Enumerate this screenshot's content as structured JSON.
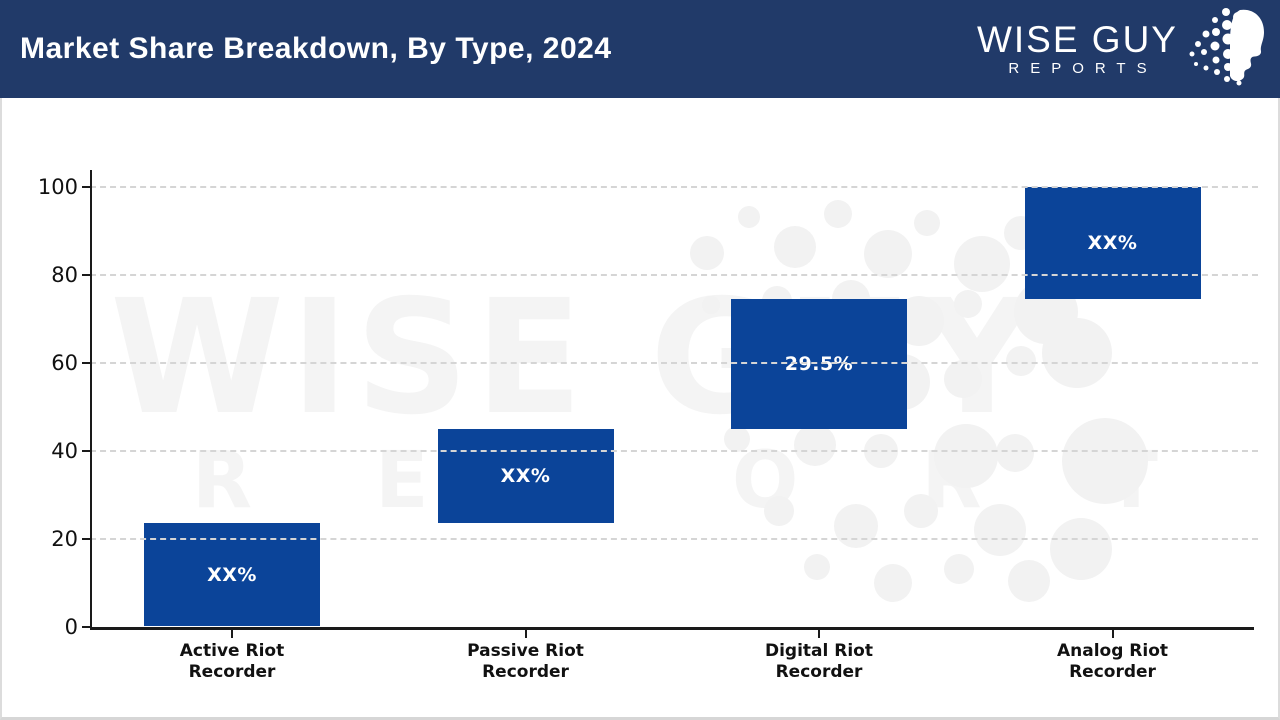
{
  "header": {
    "title": "Market Share Breakdown, By Type, 2024",
    "bg_color": "#213a69",
    "logo": {
      "line1": "WISE GUY",
      "line2": "REPORTS",
      "icon": "dotted-face-profile-icon"
    }
  },
  "watermark": {
    "line1": "WISE GUY",
    "line2": "R E P O R T S"
  },
  "chart_data": {
    "type": "bar",
    "subtype": "floating-waterfall",
    "title": "Market Share Breakdown, By Type, 2024",
    "xlabel": "",
    "ylabel": "",
    "ylim": [
      0,
      100
    ],
    "yticks": [
      0,
      20,
      40,
      60,
      80,
      100
    ],
    "grid": "horizontal-dashed",
    "legend": "none",
    "bar_color": "#0b4499",
    "bar_label_color": "#ffffff",
    "categories": [
      "Active Riot Recorder",
      "Passive Riot Recorder",
      "Digital Riot Recorder",
      "Analog Riot Recorder"
    ],
    "bars": [
      {
        "category": "Active Riot Recorder",
        "start": 0,
        "end": 23.5,
        "value": 23.5,
        "label": "XX%"
      },
      {
        "category": "Passive Riot Recorder",
        "start": 23.5,
        "end": 45,
        "value": 21.5,
        "label": "XX%"
      },
      {
        "category": "Digital Riot Recorder",
        "start": 45,
        "end": 74.5,
        "value": 29.5,
        "label": "29.5%"
      },
      {
        "category": "Analog Riot Recorder",
        "start": 74.5,
        "end": 100,
        "value": 25.5,
        "label": "XX%"
      }
    ]
  }
}
